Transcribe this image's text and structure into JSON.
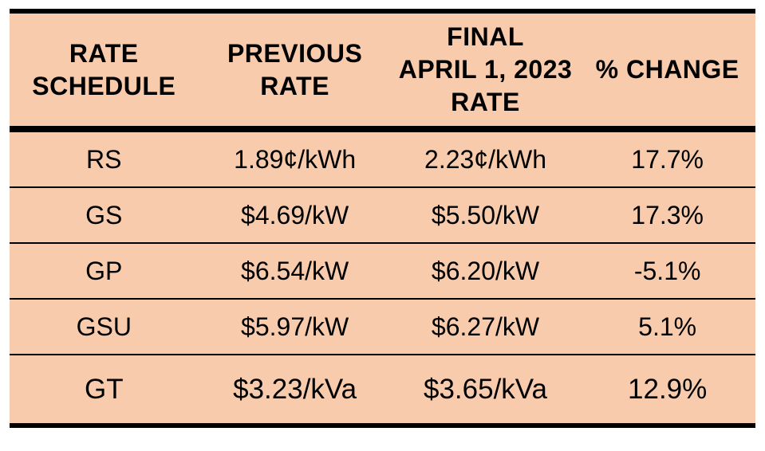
{
  "colors": {
    "table_bg": "#f8cbad",
    "border": "#000000",
    "text": "#000000",
    "page_bg": "#ffffff"
  },
  "header_display": {
    "col0": "RATE\nSCHEDULE",
    "col1": "PREVIOUS\nRATE",
    "col2": "FINAL\nAPRIL 1, 2023\nRATE",
    "col3": "% CHANGE"
  },
  "chart_data": {
    "type": "table",
    "columns": [
      "RATE SCHEDULE",
      "PREVIOUS RATE",
      "FINAL APRIL 1, 2023 RATE",
      "% CHANGE"
    ],
    "rows": [
      [
        "RS",
        "1.89¢/kWh",
        "2.23¢/kWh",
        "17.7%"
      ],
      [
        "GS",
        "$4.69/kW",
        "$5.50/kW",
        "17.3%"
      ],
      [
        "GP",
        "$6.54/kW",
        "$6.20/kW",
        "-5.1%"
      ],
      [
        "GSU",
        "$5.97/kW",
        "$6.27/kW",
        "5.1%"
      ],
      [
        "GT",
        "$3.23/kVa",
        "$3.65/kVa",
        "12.9%"
      ]
    ],
    "percent_change_numeric": [
      17.7,
      17.3,
      -5.1,
      5.1,
      12.9
    ]
  }
}
